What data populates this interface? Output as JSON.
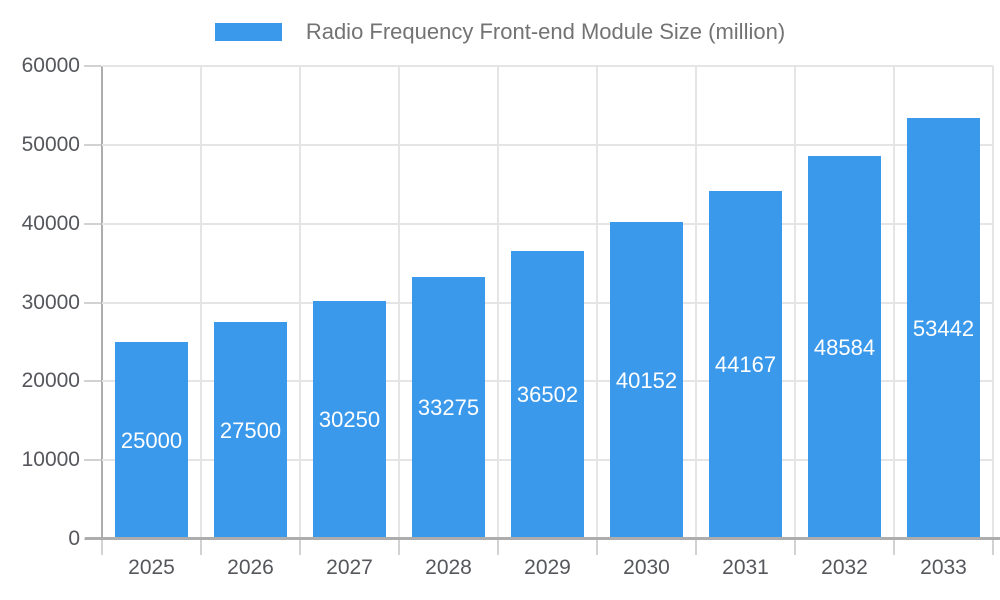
{
  "legend": {
    "label": "Radio Frequency Front-end Module Size (million)",
    "swatch_color": "#3b99ec"
  },
  "chart_data": {
    "type": "bar",
    "title": "Radio Frequency Front-end Module Size (million)",
    "categories": [
      "2025",
      "2026",
      "2027",
      "2028",
      "2029",
      "2030",
      "2031",
      "2032",
      "2033"
    ],
    "series": [
      {
        "name": "Radio Frequency Front-end Module Size (million)",
        "color": "#3b99ec",
        "values": [
          25000,
          27500,
          30250,
          33275,
          36502,
          40152,
          44167,
          48584,
          53442
        ]
      }
    ],
    "value_labels": [
      "25000",
      "27500",
      "30250",
      "33275",
      "36502",
      "40152",
      "44167",
      "48584",
      "53442"
    ],
    "value_labels_position": "inside-center",
    "xlabel": "",
    "ylabel": "",
    "ylim": [
      0,
      60000
    ],
    "y_ticks": [
      0,
      10000,
      20000,
      30000,
      40000,
      50000,
      60000
    ],
    "y_tick_labels": [
      "0",
      "10000",
      "20000",
      "30000",
      "40000",
      "50000",
      "60000"
    ],
    "grid": true,
    "legend_position": "top-center",
    "style": {
      "bar_color": "#3b99ec",
      "value_label_color": "#ffffff",
      "axis_text_color": "#55575c",
      "legend_text_color": "#737373",
      "gridline_color": "#e5e5e5",
      "axis_line_color": "#adadad",
      "tick_color": "#d2d2d2",
      "background_color": "#ffffff"
    }
  }
}
